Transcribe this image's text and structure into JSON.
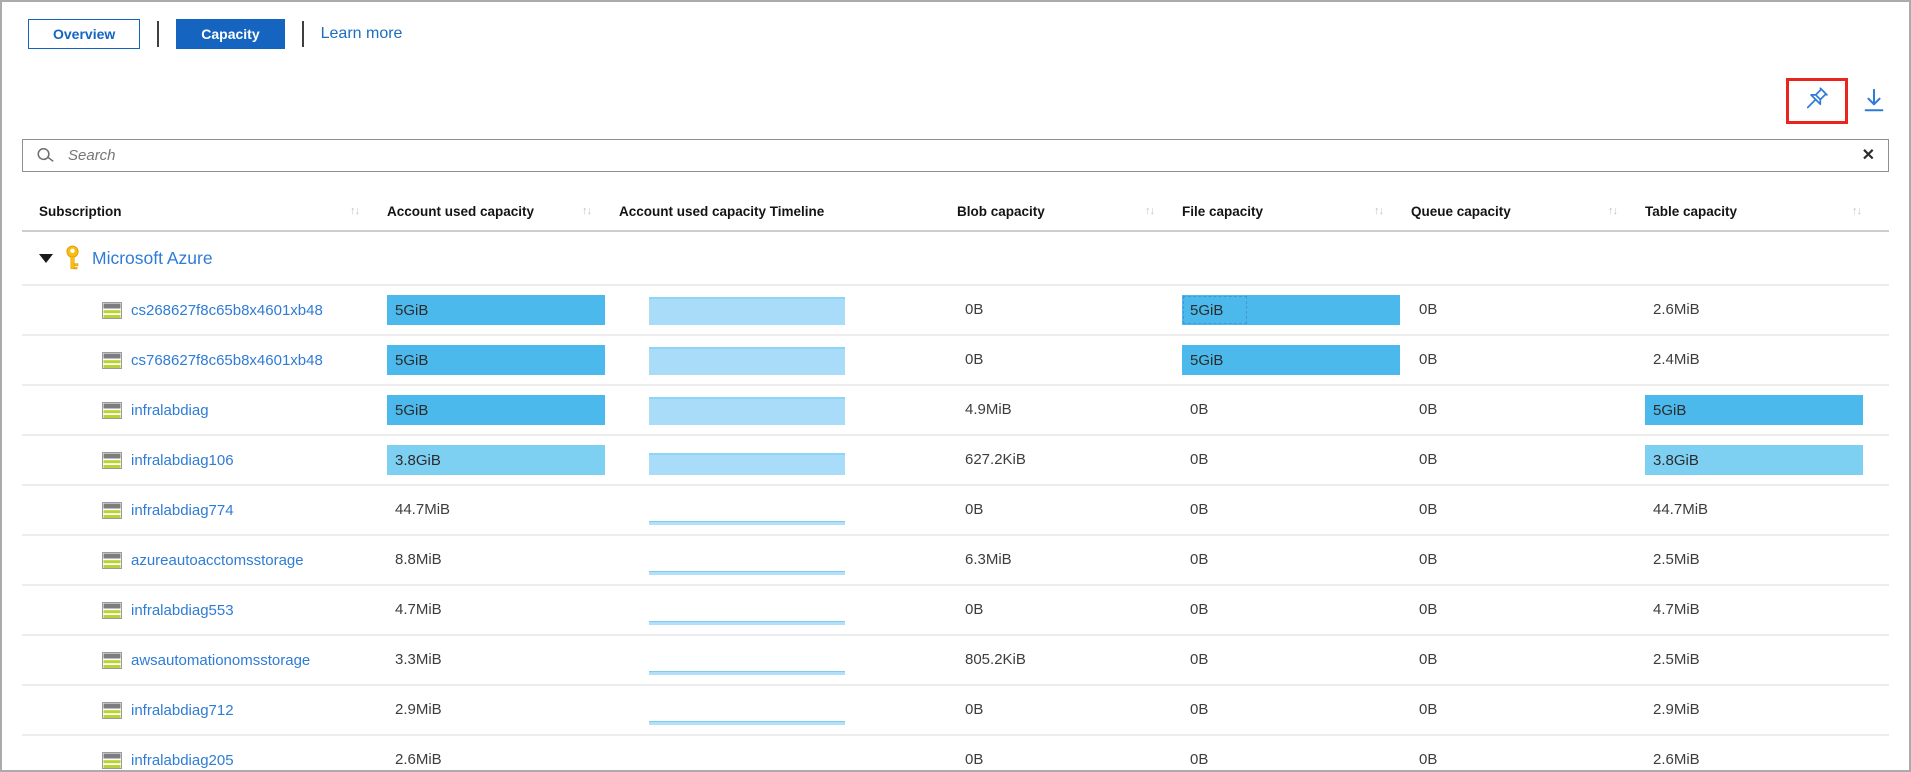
{
  "tabs": {
    "overview_label": "Overview",
    "capacity_label": "Capacity",
    "learn_more_label": "Learn more",
    "active_tab": "Capacity"
  },
  "toolbar": {
    "pin_icon": "pushpin-icon",
    "download_icon": "download-icon",
    "pin_highlighted": true
  },
  "search": {
    "placeholder": "Search",
    "value": "",
    "search_icon": "magnifier-icon",
    "clear_glyph": "✕"
  },
  "icons": {
    "sort_up": "↑",
    "sort_down": "↓",
    "group_expand": "triangle-down",
    "group_key": "key-icon",
    "account": "storage-account-icon"
  },
  "colors": {
    "tab_blue": "#1565c0",
    "link_blue": "#2e7cd6",
    "bar_blue": "#4bb9ec",
    "bar_light_blue": "#7ed0f3",
    "timeline_fill": "#a9dcf8",
    "pin_highlight_red": "#e8251f"
  },
  "table": {
    "columns": [
      {
        "label": "Subscription",
        "sortable": true
      },
      {
        "label": "Account used capacity",
        "sortable": true
      },
      {
        "label": "Account used capacity Timeline",
        "sortable": false
      },
      {
        "label": "Blob capacity",
        "sortable": true
      },
      {
        "label": "File capacity",
        "sortable": true
      },
      {
        "label": "Queue capacity",
        "sortable": true
      },
      {
        "label": "Table capacity",
        "sortable": true
      }
    ],
    "group": {
      "label": "Microsoft Azure",
      "expanded": true
    },
    "rows": [
      {
        "name": "cs268627f8c65b8x4601xb48",
        "used": {
          "text": "5GiB",
          "bar": "blue"
        },
        "timeline": {
          "kind": "area",
          "level": 1
        },
        "blob": "0B",
        "file": {
          "text": "5GiB",
          "bar": "blue",
          "focused": true
        },
        "queue": "0B",
        "tablecap": {
          "text": "2.6MiB"
        }
      },
      {
        "name": "cs768627f8c65b8x4601xb48",
        "used": {
          "text": "5GiB",
          "bar": "blue"
        },
        "timeline": {
          "kind": "area",
          "level": 1
        },
        "blob": "0B",
        "file": {
          "text": "5GiB",
          "bar": "blue"
        },
        "queue": "0B",
        "tablecap": {
          "text": "2.4MiB"
        }
      },
      {
        "name": "infralabdiag",
        "used": {
          "text": "5GiB",
          "bar": "blue"
        },
        "timeline": {
          "kind": "area",
          "level": 1
        },
        "blob": "4.9MiB",
        "file": {
          "text": "0B"
        },
        "queue": "0B",
        "tablecap": {
          "text": "5GiB",
          "bar": "blue"
        }
      },
      {
        "name": "infralabdiag106",
        "used": {
          "text": "3.8GiB",
          "bar": "light"
        },
        "timeline": {
          "kind": "area",
          "level": 0.8
        },
        "blob": "627.2KiB",
        "file": {
          "text": "0B"
        },
        "queue": "0B",
        "tablecap": {
          "text": "3.8GiB",
          "bar": "light"
        }
      },
      {
        "name": "infralabdiag774",
        "used": {
          "text": "44.7MiB"
        },
        "timeline": {
          "kind": "line"
        },
        "blob": "0B",
        "file": {
          "text": "0B"
        },
        "queue": "0B",
        "tablecap": {
          "text": "44.7MiB"
        }
      },
      {
        "name": "azureautoacctomsstorage",
        "used": {
          "text": "8.8MiB"
        },
        "timeline": {
          "kind": "line"
        },
        "blob": "6.3MiB",
        "file": {
          "text": "0B"
        },
        "queue": "0B",
        "tablecap": {
          "text": "2.5MiB"
        }
      },
      {
        "name": "infralabdiag553",
        "used": {
          "text": "4.7MiB"
        },
        "timeline": {
          "kind": "line"
        },
        "blob": "0B",
        "file": {
          "text": "0B"
        },
        "queue": "0B",
        "tablecap": {
          "text": "4.7MiB"
        }
      },
      {
        "name": "awsautomationomsstorage",
        "used": {
          "text": "3.3MiB"
        },
        "timeline": {
          "kind": "line"
        },
        "blob": "805.2KiB",
        "file": {
          "text": "0B"
        },
        "queue": "0B",
        "tablecap": {
          "text": "2.5MiB"
        }
      },
      {
        "name": "infralabdiag712",
        "used": {
          "text": "2.9MiB"
        },
        "timeline": {
          "kind": "line"
        },
        "blob": "0B",
        "file": {
          "text": "0B"
        },
        "queue": "0B",
        "tablecap": {
          "text": "2.9MiB"
        }
      },
      {
        "name": "infralabdiag205",
        "used": {
          "text": "2.6MiB"
        },
        "timeline": {
          "kind": "line"
        },
        "blob": "0B",
        "file": {
          "text": "0B"
        },
        "queue": "0B",
        "tablecap": {
          "text": "2.6MiB"
        }
      }
    ]
  }
}
